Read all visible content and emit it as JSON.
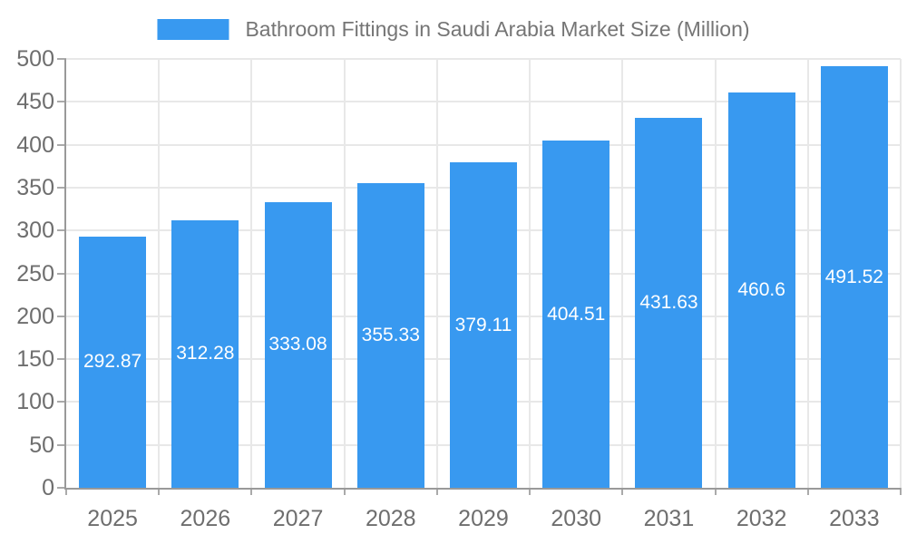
{
  "chart_data": {
    "type": "bar",
    "title": "Bathroom Fittings in Saudi Arabia Market Size (Million)",
    "categories": [
      "2025",
      "2026",
      "2027",
      "2028",
      "2029",
      "2030",
      "2031",
      "2032",
      "2033"
    ],
    "values": [
      292.87,
      312.28,
      333.08,
      355.33,
      379.11,
      404.51,
      431.63,
      460.6,
      491.52
    ],
    "xlabel": "",
    "ylabel": "",
    "ylim": [
      0,
      500
    ],
    "yticks": [
      0,
      50,
      100,
      150,
      200,
      250,
      300,
      350,
      400,
      450,
      500
    ],
    "grid": true,
    "legend_position": "top",
    "colors": {
      "bar": "#3899F0",
      "bar_label_text": "#FFFFFF",
      "axis_line": "#999999",
      "grid_line": "#E8E8E8",
      "tick_mark": "#AAAAAA",
      "tick_text": "#6E6E6E",
      "legend_text": "#757575",
      "background": "#FFFFFF"
    }
  }
}
